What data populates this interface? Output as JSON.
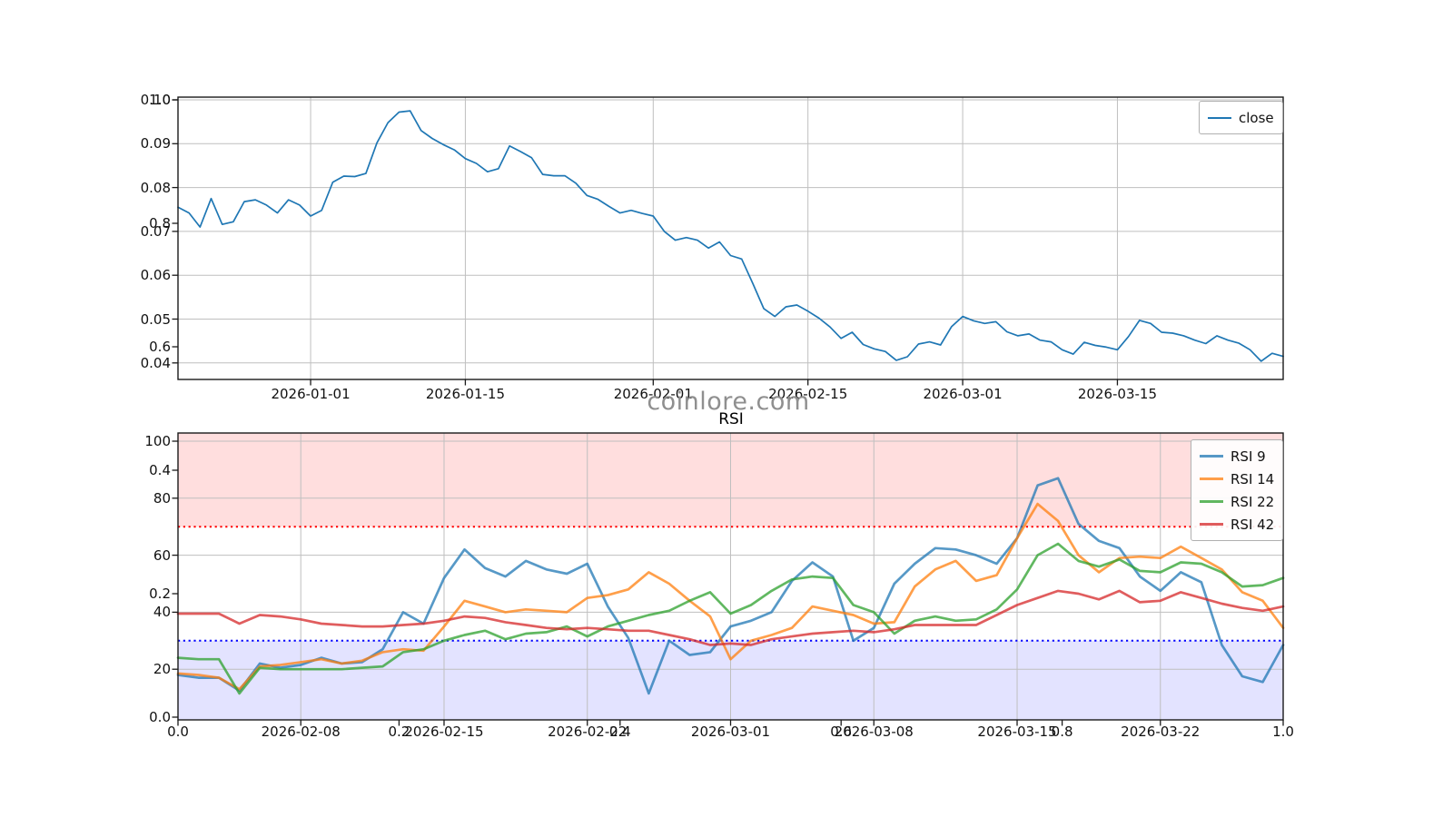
{
  "watermark": "coinlore.com",
  "figure_axis": {
    "x_tick_labels": [
      "0.0",
      "0.2",
      "0.4",
      "0.6",
      "0.8",
      "1.0"
    ],
    "y_tick_labels": [
      "1.0",
      "0.8",
      "0.6",
      "0.4",
      "0.2",
      "0.0"
    ]
  },
  "chart_data": [
    {
      "id": "price",
      "type": "line",
      "title": "",
      "legend_position": "upper right",
      "grid": true,
      "x_start_date": "2025-12-20",
      "x_tick_labels": [
        "2026-01-01",
        "2026-01-15",
        "2026-02-01",
        "2026-02-15",
        "2026-03-01",
        "2026-03-15"
      ],
      "x_tick_day_index": [
        12,
        26,
        43,
        57,
        71,
        85
      ],
      "y_tick_labels": [
        "0.04",
        "0.05",
        "0.06",
        "0.07",
        "0.08",
        "0.09",
        "0.10"
      ],
      "y_tick_values": [
        0.04,
        0.05,
        0.06,
        0.07,
        0.08,
        0.09,
        0.1
      ],
      "ylim": [
        0.0363,
        0.1006
      ],
      "series": [
        {
          "name": "close",
          "color": "#1f77b4",
          "line_width": 1.7,
          "values": [
            0.0755,
            0.0742,
            0.071,
            0.0775,
            0.0716,
            0.0722,
            0.0768,
            0.0772,
            0.076,
            0.0742,
            0.0772,
            0.076,
            0.0735,
            0.0748,
            0.0812,
            0.0826,
            0.0825,
            0.0832,
            0.0902,
            0.0948,
            0.0972,
            0.0975,
            0.093,
            0.0912,
            0.0898,
            0.0886,
            0.0866,
            0.0855,
            0.0836,
            0.0843,
            0.0895,
            0.0882,
            0.0868,
            0.083,
            0.0827,
            0.0827,
            0.081,
            0.0782,
            0.0773,
            0.0757,
            0.0742,
            0.0748,
            0.0741,
            0.0735,
            0.07,
            0.068,
            0.0686,
            0.068,
            0.0662,
            0.0676,
            0.0645,
            0.0637,
            0.0582,
            0.0524,
            0.0506,
            0.0528,
            0.0532,
            0.0518,
            0.0502,
            0.0482,
            0.0456,
            0.047,
            0.0442,
            0.0432,
            0.0426,
            0.0406,
            0.0414,
            0.0443,
            0.0448,
            0.0441,
            0.0483,
            0.0506,
            0.0496,
            0.049,
            0.0494,
            0.0471,
            0.0462,
            0.0466,
            0.0452,
            0.0448,
            0.043,
            0.042,
            0.0447,
            0.044,
            0.0436,
            0.043,
            0.046,
            0.0497,
            0.049,
            0.047,
            0.0468,
            0.0462,
            0.0452,
            0.0444,
            0.0462,
            0.0452,
            0.0445,
            0.043,
            0.0404,
            0.0422,
            0.0415
          ]
        }
      ]
    },
    {
      "id": "rsi",
      "type": "line",
      "title": "RSI",
      "legend_position": "upper right",
      "grid": true,
      "x_start_date": "2026-02-02",
      "x_tick_labels": [
        "2026-02-08",
        "2026-02-15",
        "2026-02-22",
        "2026-03-01",
        "2026-03-08",
        "2026-03-15",
        "2026-03-22"
      ],
      "x_tick_day_index": [
        6,
        13,
        20,
        27,
        34,
        41,
        48
      ],
      "y_tick_labels": [
        "20",
        "40",
        "60",
        "80",
        "100"
      ],
      "y_tick_values": [
        20,
        40,
        60,
        80,
        100
      ],
      "ylim": [
        2,
        103
      ],
      "overbought": {
        "level": 70,
        "line_color": "#ff0000",
        "band_color": "rgba(255,0,0,0.13)"
      },
      "oversold": {
        "level": 30,
        "line_color": "#0000ff",
        "band_color": "rgba(0,0,255,0.11)"
      },
      "series": [
        {
          "name": "RSI 9",
          "color": "rgba(31,119,180,0.75)",
          "line_width": 2.7,
          "values": [
            18,
            17,
            17,
            12.5,
            22,
            20.5,
            21.5,
            24,
            22,
            22.5,
            27,
            40,
            36,
            52,
            62,
            55.5,
            52.5,
            58,
            55,
            53.5,
            57,
            42,
            31,
            11.5,
            30,
            25,
            26,
            35,
            37,
            40,
            51,
            57.5,
            52.5,
            30,
            34.5,
            50,
            57,
            62.5,
            62,
            60,
            57,
            66,
            84.5,
            87,
            71,
            65,
            62.5,
            52.5,
            47.5,
            54,
            50.5,
            28.5,
            17.5,
            15.5,
            28.5
          ]
        },
        {
          "name": "RSI 14",
          "color": "rgba(255,127,14,0.75)",
          "line_width": 2.7,
          "values": [
            18.5,
            18,
            17,
            13,
            21,
            21.5,
            22.5,
            23.5,
            22,
            23,
            26,
            27,
            26.5,
            35,
            44,
            42,
            40,
            41,
            40.5,
            40,
            45,
            46,
            48,
            54,
            50,
            44,
            38.5,
            23.5,
            30,
            32,
            34.5,
            42,
            40.5,
            39,
            36,
            36.5,
            49,
            55,
            58,
            51,
            53,
            66,
            78,
            72,
            60,
            54,
            59,
            59.5,
            59,
            63,
            59,
            55,
            47,
            44,
            34.5
          ]
        },
        {
          "name": "RSI 22",
          "color": "rgba(44,160,44,0.75)",
          "line_width": 2.7,
          "values": [
            24,
            23.5,
            23.5,
            11.5,
            20.5,
            20,
            20,
            20,
            20,
            20.5,
            21,
            26,
            27,
            30,
            32,
            33.5,
            30.5,
            32.5,
            33,
            35,
            31.5,
            35,
            37,
            39,
            40.5,
            44,
            47,
            39.5,
            42.5,
            47.5,
            51.5,
            52.5,
            52,
            42.5,
            40,
            32.5,
            37,
            38.5,
            37,
            37.5,
            41,
            48,
            60,
            64,
            58,
            56,
            58.5,
            54.5,
            54,
            57.5,
            57,
            54,
            49,
            49.5,
            52
          ]
        },
        {
          "name": "RSI 42",
          "color": "rgba(214,39,40,0.75)",
          "line_width": 2.7,
          "values": [
            39.5,
            39.5,
            39.5,
            36,
            39,
            38.5,
            37.5,
            36,
            35.5,
            35,
            35,
            35.5,
            36,
            37,
            38.5,
            38,
            36.5,
            35.5,
            34.5,
            34,
            34.5,
            34,
            33.5,
            33.5,
            32,
            30.5,
            28.5,
            29,
            28.5,
            30.5,
            31.5,
            32.5,
            33,
            33.5,
            33,
            34,
            35.5,
            35.5,
            35.5,
            35.5,
            39,
            42.5,
            45,
            47.5,
            46.5,
            44.5,
            47.5,
            43.5,
            44,
            47,
            45,
            43,
            41.5,
            40.5,
            42
          ]
        }
      ]
    }
  ]
}
